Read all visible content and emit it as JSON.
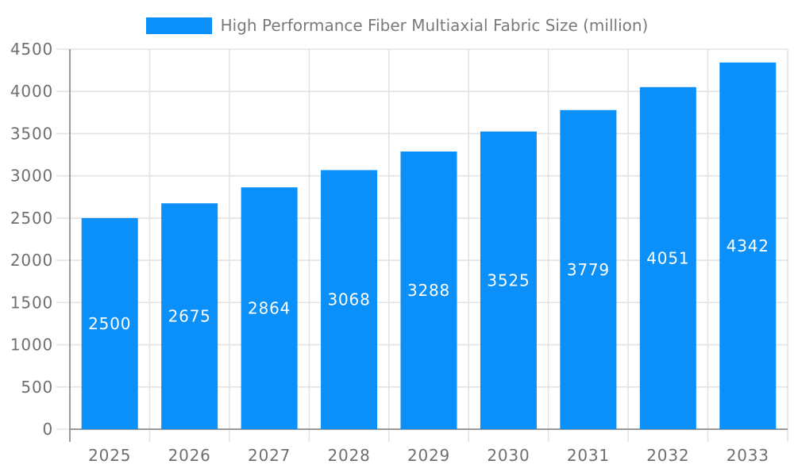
{
  "chart_data": {
    "type": "bar",
    "title": "High Performance Fiber Multiaxial Fabric Size (million)",
    "legend": "High Performance Fiber Multiaxial Fabric Size (million)",
    "legend_position": "top-center",
    "categories": [
      "2025",
      "2026",
      "2027",
      "2028",
      "2029",
      "2030",
      "2031",
      "2032",
      "2033"
    ],
    "values": [
      2500,
      2675,
      2864,
      3068,
      3288,
      3525,
      3779,
      4051,
      4342
    ],
    "xlabel": "",
    "ylabel": "",
    "ylim": [
      0,
      4500
    ],
    "ytick_step": 500,
    "yticks": [
      0,
      500,
      1000,
      1500,
      2000,
      2500,
      3000,
      3500,
      4000,
      4500
    ],
    "grid": true,
    "value_labels_position": "inside-center",
    "colors": {
      "bar": "#0a90f8",
      "bar_value_label": "#ffffff",
      "axis_text": "#6f6f6f",
      "legend_text": "#7a7a7a",
      "axis_line": "#9a9a9a",
      "gridline": "#e3e3e3",
      "background": "#ffffff"
    }
  }
}
